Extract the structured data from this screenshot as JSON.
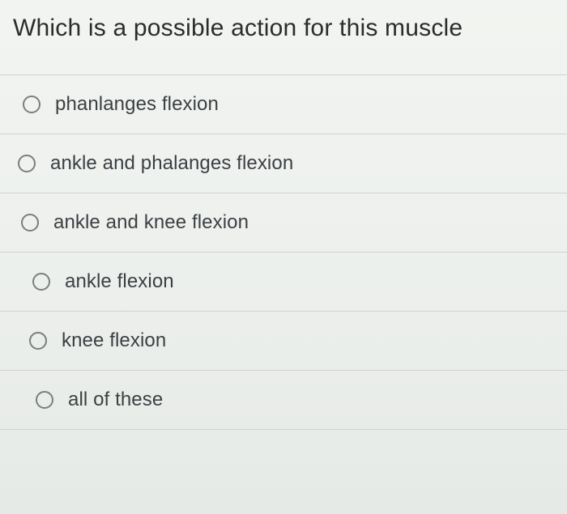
{
  "question": {
    "text": "Which is a possible action for this muscle"
  },
  "options": [
    {
      "label": "phanlanges flexion",
      "selected": false
    },
    {
      "label": "ankle and phalanges flexion",
      "selected": false
    },
    {
      "label": "ankle and knee flexion",
      "selected": false
    },
    {
      "label": "ankle flexion",
      "selected": false
    },
    {
      "label": "knee flexion",
      "selected": false
    },
    {
      "label": "all of these",
      "selected": false
    }
  ],
  "colors": {
    "background": "#e8ece9",
    "text_primary": "#2a2d2e",
    "text_option": "#3c4043",
    "border": "#d0d4d0",
    "radio_border": "#7a7f7c"
  },
  "typography": {
    "question_fontsize": 30,
    "option_fontsize": 24
  }
}
